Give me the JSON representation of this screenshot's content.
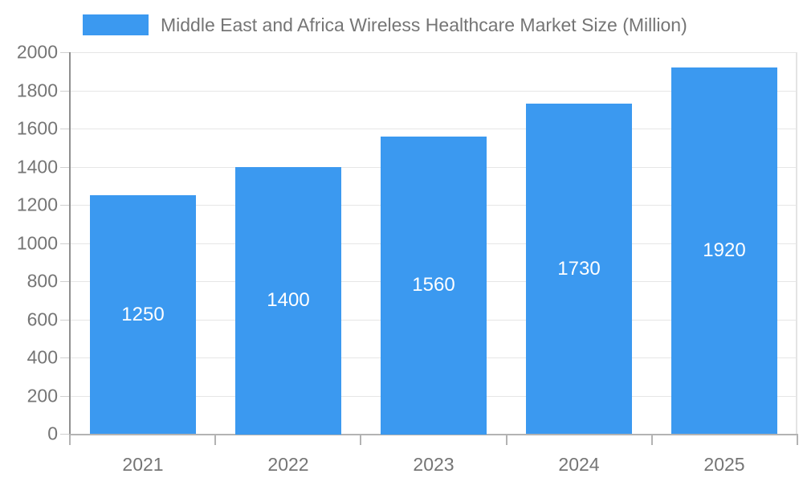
{
  "legend": {
    "label": "Middle East and Africa Wireless Healthcare Market Size (Million)"
  },
  "chart_data": {
    "type": "bar",
    "title": "Middle East and Africa Wireless Healthcare Market Size (Million)",
    "categories": [
      "2021",
      "2022",
      "2023",
      "2024",
      "2025"
    ],
    "values": [
      1250,
      1400,
      1560,
      1730,
      1920
    ],
    "bar_labels": [
      "1250",
      "1400",
      "1560",
      "1730",
      "1920"
    ],
    "xlabel": "",
    "ylabel": "",
    "ylim": [
      0,
      2000
    ],
    "ytick_step": 200,
    "ytick_labels": [
      "0",
      "200",
      "400",
      "600",
      "800",
      "1000",
      "1200",
      "1400",
      "1600",
      "1800",
      "2000"
    ],
    "grid": true,
    "legend_position": "top-left",
    "colors": {
      "bar": "#3b99f0",
      "bar_value_text": "#ffffff",
      "axis_text": "#757575",
      "gridline": "#e6e6e6",
      "axis_line": "#8f8f8f",
      "bottom_axis_line": "#b3b3b3",
      "plot_right_border": "#e4e4e4",
      "tick": "#d0d0d0"
    }
  }
}
